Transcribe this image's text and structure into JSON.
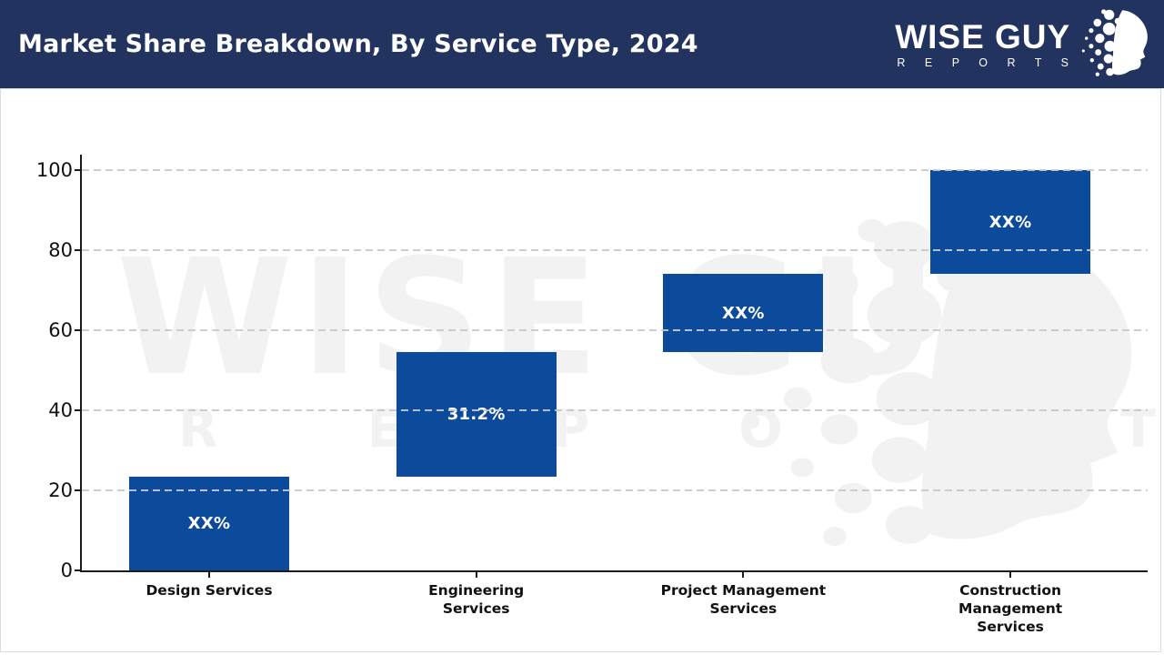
{
  "header": {
    "title": "Market Share Breakdown, By Service Type, 2024",
    "bg_color": "#21335e",
    "logo": {
      "line1": "WISE GUY",
      "line2": "R E P O R T S"
    }
  },
  "watermark": {
    "line1": "WISE GUY",
    "line2": "R E P O R T S"
  },
  "chart_data": {
    "type": "bar",
    "subtype": "waterfall",
    "title": "Market Share Breakdown, By Service Type, 2024",
    "categories": [
      "Design Services",
      "Engineering\nServices",
      "Project Management\nServices",
      "Construction\nManagement\nServices"
    ],
    "series": [
      {
        "name": "Market Share",
        "segments": [
          {
            "category": "Design Services",
            "start": 0,
            "end": 23.4,
            "label": "XX%"
          },
          {
            "category": "Engineering Services",
            "start": 23.4,
            "end": 54.6,
            "label": "31.2%"
          },
          {
            "category": "Project Management Services",
            "start": 54.6,
            "end": 74,
            "label": "XX%"
          },
          {
            "category": "Construction Management Services",
            "start": 74,
            "end": 100,
            "label": "XX%"
          }
        ]
      }
    ],
    "xlabel": "",
    "ylabel": "",
    "ylim": [
      0,
      100
    ],
    "yticks": [
      0,
      20,
      40,
      60,
      80,
      100
    ],
    "grid": "horizontal-dashed",
    "legend": "none",
    "bar_color": "#0c4a9c",
    "bar_label_color": "#ffffff",
    "grid_color": "#c9c9c9",
    "axis_color": "#1c1c1c"
  }
}
